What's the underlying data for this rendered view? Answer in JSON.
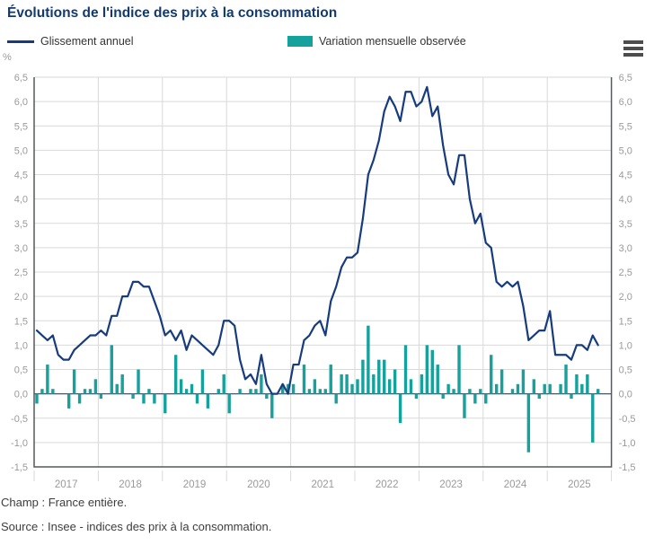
{
  "title": "Évolutions de l'indice des prix à la consommation",
  "unit_label": "%",
  "legend": {
    "line_label": "Glissement annuel",
    "bar_label": "Variation mensuelle observée"
  },
  "menu_icon": "hamburger-menu-icon",
  "footer": {
    "champ": "Champ : France entière.",
    "source": "Source : Insee - indices des prix à la consommation."
  },
  "colors": {
    "title": "#123a6e",
    "line_series": "#173c7e",
    "bar_series": "#15a19c",
    "grid": "#d9d9d9",
    "frame": "#55585c",
    "zero_line": "#4a5568",
    "tick_label": "#9a9a9a",
    "footnote": "#3d3d3d"
  },
  "chart_data": {
    "type": "mixed",
    "subtype": [
      "line",
      "bar"
    ],
    "x_unit": "month",
    "x_start": "2017-01",
    "x_end": "2025-10",
    "x_tick_labels": [
      "2017",
      "2018",
      "2019",
      "2020",
      "2021",
      "2022",
      "2023",
      "2024",
      "2025"
    ],
    "ylim": [
      -1.5,
      6.5
    ],
    "ytick_step": 0.5,
    "y_ticks": [
      6.5,
      6.0,
      5.5,
      5.0,
      4.5,
      4.0,
      3.5,
      3.0,
      2.5,
      2.0,
      1.5,
      1.0,
      0.5,
      0.0,
      -0.5,
      -1.0,
      -1.5
    ],
    "y_tick_labels": [
      "6,5",
      "6,0",
      "5,5",
      "5,0",
      "4,5",
      "4,0",
      "3,5",
      "3,0",
      "2,5",
      "2,0",
      "1,5",
      "1,0",
      "0,5",
      "0,0",
      "-0,5",
      "-1,0",
      "-1,5"
    ],
    "grid": true,
    "legend_position": "top",
    "axis_labels_both_sides": true,
    "series": [
      {
        "name": "Glissement annuel",
        "type": "line",
        "color": "#173c7e",
        "values": [
          1.3,
          1.2,
          1.1,
          1.2,
          0.8,
          0.7,
          0.7,
          0.9,
          1.0,
          1.1,
          1.2,
          1.2,
          1.3,
          1.2,
          1.6,
          1.6,
          2.0,
          2.0,
          2.3,
          2.3,
          2.2,
          2.2,
          1.9,
          1.6,
          1.2,
          1.3,
          1.1,
          1.3,
          0.9,
          1.2,
          1.1,
          1.0,
          0.9,
          0.8,
          1.0,
          1.5,
          1.5,
          1.4,
          0.7,
          0.3,
          0.4,
          0.2,
          0.8,
          0.2,
          0.0,
          0.0,
          0.2,
          0.0,
          0.6,
          0.6,
          1.1,
          1.2,
          1.4,
          1.5,
          1.2,
          1.9,
          2.2,
          2.6,
          2.8,
          2.8,
          2.9,
          3.6,
          4.5,
          4.8,
          5.2,
          5.8,
          6.1,
          5.9,
          5.6,
          6.2,
          6.2,
          5.9,
          6.0,
          6.3,
          5.7,
          5.9,
          5.1,
          4.5,
          4.3,
          4.9,
          4.9,
          4.0,
          3.5,
          3.7,
          3.1,
          3.0,
          2.3,
          2.2,
          2.3,
          2.2,
          2.3,
          1.8,
          1.1,
          1.2,
          1.3,
          1.3,
          1.7,
          0.8,
          0.8,
          0.8,
          0.7,
          1.0,
          1.0,
          0.9,
          1.2,
          1.0
        ]
      },
      {
        "name": "Variation mensuelle observée",
        "type": "bar",
        "color": "#15a19c",
        "values": [
          -0.2,
          0.1,
          0.6,
          0.1,
          0.0,
          0.0,
          -0.3,
          0.5,
          -0.2,
          0.1,
          0.1,
          0.3,
          -0.1,
          0.0,
          1.0,
          0.2,
          0.4,
          0.0,
          -0.1,
          0.5,
          -0.2,
          0.1,
          -0.2,
          0.0,
          -0.4,
          0.0,
          0.8,
          0.3,
          0.1,
          0.2,
          -0.2,
          0.5,
          -0.3,
          0.0,
          0.1,
          0.4,
          -0.4,
          0.0,
          0.1,
          0.0,
          0.1,
          0.1,
          0.4,
          -0.1,
          -0.5,
          0.0,
          0.2,
          0.2,
          0.2,
          0.0,
          0.6,
          0.1,
          0.3,
          0.1,
          0.1,
          0.6,
          -0.2,
          0.4,
          0.4,
          0.2,
          0.3,
          0.7,
          1.4,
          0.4,
          0.7,
          0.7,
          0.3,
          0.5,
          -0.6,
          1.0,
          0.3,
          -0.1,
          0.4,
          1.0,
          0.9,
          0.6,
          -0.1,
          0.2,
          0.1,
          1.0,
          -0.5,
          0.1,
          -0.2,
          0.1,
          -0.2,
          0.8,
          0.2,
          0.5,
          0.0,
          0.1,
          0.2,
          0.5,
          -1.2,
          0.3,
          -0.1,
          0.2,
          0.2,
          0.0,
          0.2,
          0.6,
          -0.1,
          0.4,
          0.2,
          0.4,
          -1.0,
          0.1
        ]
      }
    ]
  }
}
